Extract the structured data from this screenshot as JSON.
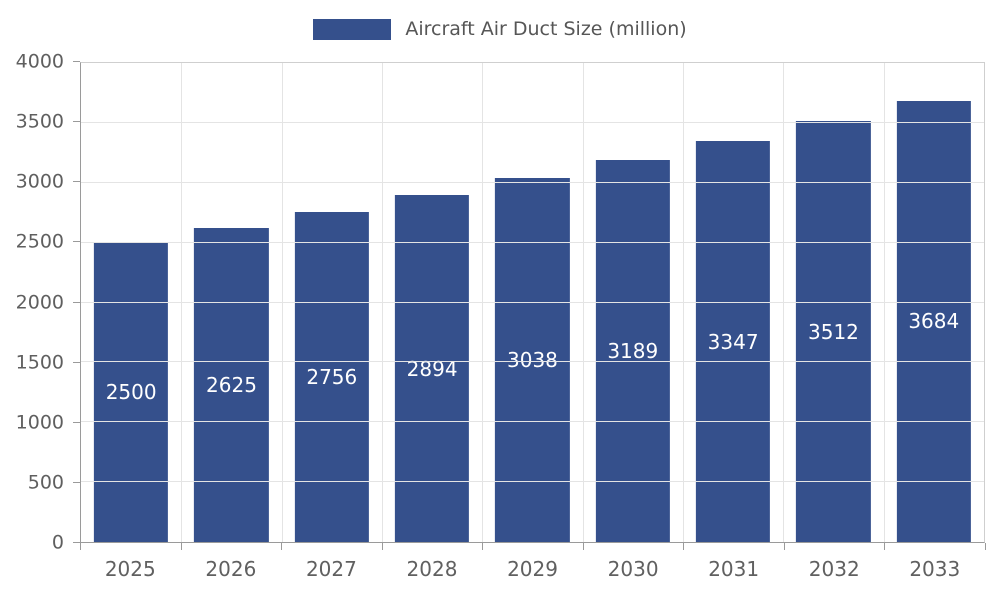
{
  "chart_data": {
    "type": "bar",
    "title": "Aircraft Air Duct Size (million)",
    "categories": [
      "2025",
      "2026",
      "2027",
      "2028",
      "2029",
      "2030",
      "2031",
      "2032",
      "2033"
    ],
    "series": [
      {
        "name": "Aircraft Air Duct Size (million)",
        "values": [
          2500,
          2625,
          2756,
          2894,
          3038,
          3189,
          3347,
          3512,
          3684
        ]
      }
    ],
    "xlabel": "",
    "ylabel": "",
    "ylim": [
      0,
      4000
    ],
    "yticks": [
      0,
      500,
      1000,
      1500,
      2000,
      2500,
      3000,
      3500,
      4000
    ],
    "grid": true,
    "legend_position": "top",
    "colors": {
      "bar": "#35508c",
      "bar_label": "#ffffff",
      "axis_text": "#5f5f5f",
      "grid_line": "#e4e4e4",
      "legend_text": "#565656"
    }
  }
}
